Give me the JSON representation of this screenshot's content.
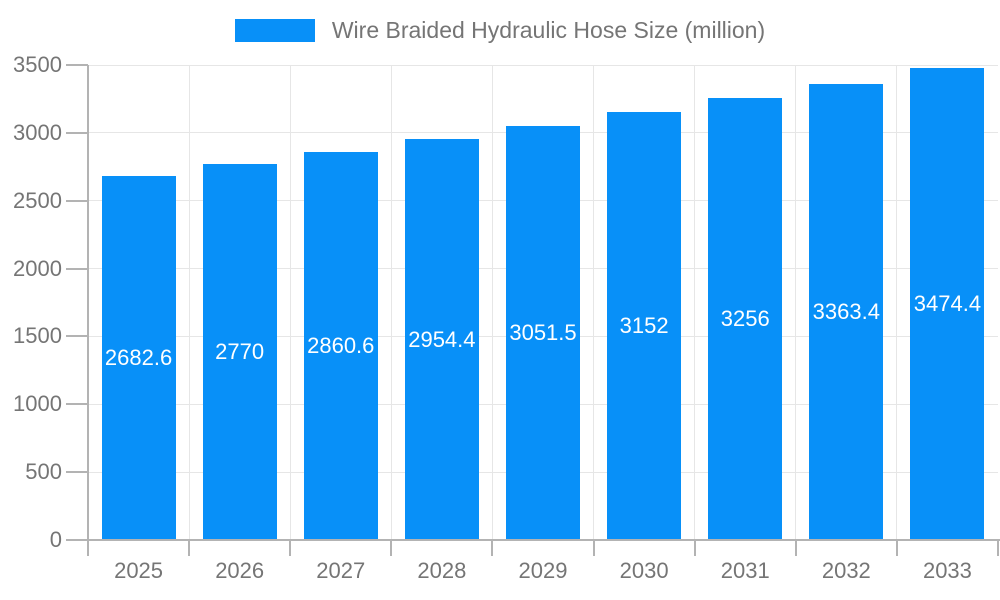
{
  "legend": {
    "label": "Wire Braided Hydraulic Hose Size (million)"
  },
  "colors": {
    "bar": "#0890f8",
    "bar_label": "#ffffff",
    "axis_text": "#757575",
    "grid_line": "#e6e6e6",
    "axis_line": "#b3b3b3"
  },
  "chart_data": {
    "type": "bar",
    "title": "Wire Braided Hydraulic Hose Size (million)",
    "categories": [
      "2025",
      "2026",
      "2027",
      "2028",
      "2029",
      "2030",
      "2031",
      "2032",
      "2033"
    ],
    "values": [
      2682.6,
      2770,
      2860.6,
      2954.4,
      3051.5,
      3152,
      3256,
      3363.4,
      3474.4
    ],
    "value_labels": [
      "2682.6",
      "2770",
      "2860.6",
      "2954.4",
      "3051.5",
      "3152",
      "3256",
      "3363.4",
      "3474.4"
    ],
    "xlabel": "",
    "ylabel": "",
    "ylim": [
      0,
      3500
    ],
    "ytick_step": 500,
    "ytick_labels": [
      "0",
      "500",
      "1000",
      "1500",
      "2000",
      "2500",
      "3000",
      "3500"
    ],
    "grid": true,
    "legend_position": "top",
    "value_label_position": "inside-center"
  }
}
